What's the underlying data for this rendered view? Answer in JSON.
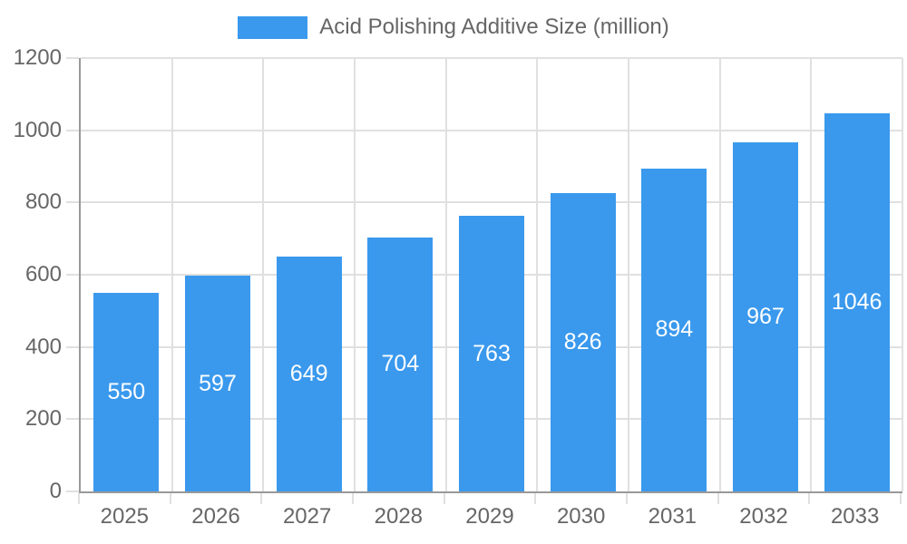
{
  "chart_data": {
    "type": "bar",
    "legend_label": "Acid Polishing Additive Size (million)",
    "legend_position": "top",
    "categories": [
      "2025",
      "2026",
      "2027",
      "2028",
      "2029",
      "2030",
      "2031",
      "2032",
      "2033"
    ],
    "values": [
      550,
      597,
      649,
      704,
      763,
      826,
      894,
      967,
      1046
    ],
    "bar_value_labels": [
      "550",
      "597",
      "649",
      "704",
      "763",
      "826",
      "894",
      "967",
      "1046"
    ],
    "xlabel": "",
    "ylabel": "",
    "ylim": [
      0,
      1200
    ],
    "yticks": [
      0,
      200,
      400,
      600,
      800,
      1000,
      1200
    ],
    "grid": "horizontal and vertical gridlines on",
    "colors": {
      "bar": "#3A99ED",
      "grid": "#E0E0E0",
      "axis": "#999999",
      "tick_text": "#666666",
      "bar_label_text": "#FFFFFF",
      "background": "#FFFFFF"
    }
  }
}
